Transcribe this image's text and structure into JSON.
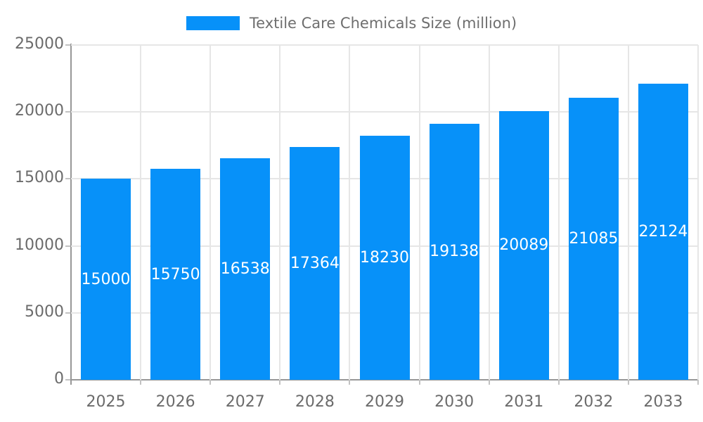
{
  "legend": {
    "label": "Textile Care Chemicals Size (million)"
  },
  "chart_data": {
    "type": "bar",
    "title": "Textile Care Chemicals Size (million)",
    "categories": [
      "2025",
      "2026",
      "2027",
      "2028",
      "2029",
      "2030",
      "2031",
      "2032",
      "2033"
    ],
    "values": [
      15000,
      15750,
      16538,
      17364,
      18230,
      19138,
      20089,
      21085,
      22124
    ],
    "bar_labels": [
      "15000",
      "15750",
      "16538",
      "17364",
      "18230",
      "19138",
      "20089",
      "21085",
      "22124"
    ],
    "xlabel": "",
    "ylabel": "",
    "ylim": [
      0,
      25000
    ],
    "yticks": [
      0,
      5000,
      10000,
      15000,
      20000,
      25000
    ],
    "ytick_labels": [
      "0",
      "5000",
      "10000",
      "15000",
      "20000",
      "25000"
    ],
    "grid": true,
    "legend_position": "top",
    "bar_label_position": "center-inside",
    "colors": {
      "bar": "#0791f9",
      "bar_label_text": "#ffffff",
      "axis_line": "#979797",
      "grid_line": "#e6e6e6",
      "tick_mark": "#c2c2c2",
      "tick_label_text": "#6b6b6b",
      "legend_text": "#6e6e6e",
      "background": "#ffffff"
    }
  }
}
